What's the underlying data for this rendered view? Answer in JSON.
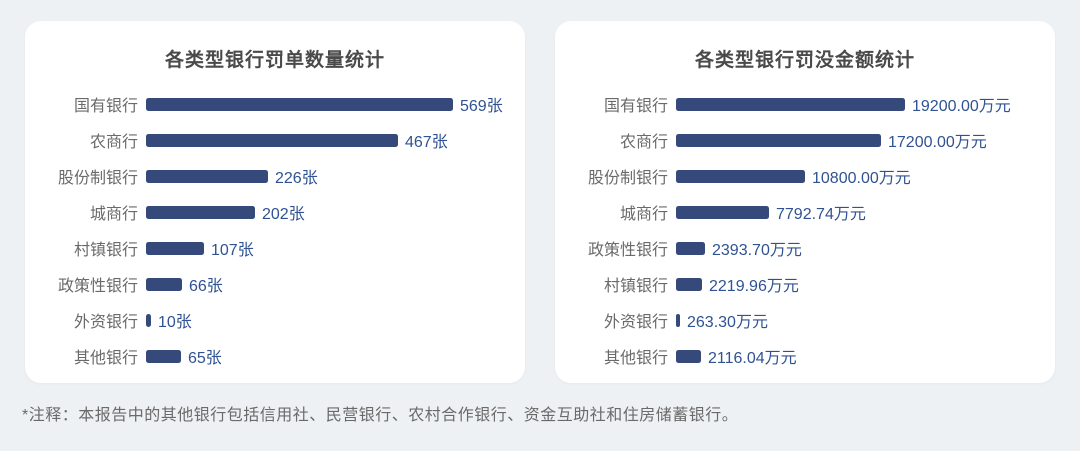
{
  "page": {
    "footnote": "*注释：本报告中的其他银行包括信用社、民营银行、农村合作银行、资金互助社和住房储蓄银行。"
  },
  "colors": {
    "page_bg": "#edf1f4",
    "card_bg": "#ffffff",
    "bar": "#35497b",
    "value_text": "#2f5292",
    "label_text": "#6a6a6a",
    "title_text": "#4a4a4a"
  },
  "chart_data": [
    {
      "type": "bar",
      "orientation": "horizontal",
      "title": "各类型银行罚单数量统计",
      "categories": [
        "国有银行",
        "农商行",
        "股份制银行",
        "城商行",
        "村镇银行",
        "政策性银行",
        "外资银行",
        "其他银行"
      ],
      "values": [
        569,
        467,
        226,
        202,
        107,
        66,
        10,
        65
      ],
      "labels": [
        "569张",
        "467张",
        "226张",
        "202张",
        "107张",
        "66张",
        "10张",
        "65张"
      ],
      "unit": "张",
      "xlim": [
        0,
        569
      ],
      "grid": false,
      "legend": "none"
    },
    {
      "type": "bar",
      "orientation": "horizontal",
      "title": "各类型银行罚没金额统计",
      "categories": [
        "国有银行",
        "农商行",
        "股份制银行",
        "城商行",
        "政策性银行",
        "村镇银行",
        "外资银行",
        "其他银行"
      ],
      "values": [
        19200.0,
        17200.0,
        10800.0,
        7792.74,
        2393.7,
        2219.96,
        263.3,
        2116.04
      ],
      "labels": [
        "19200.00万元",
        "17200.00万元",
        "10800.00万元",
        "7792.74万元",
        "2393.70万元",
        "2219.96万元",
        "263.30万元",
        "2116.04万元"
      ],
      "unit": "万元",
      "xlim": [
        0,
        19200
      ],
      "grid": false,
      "legend": "none"
    }
  ]
}
